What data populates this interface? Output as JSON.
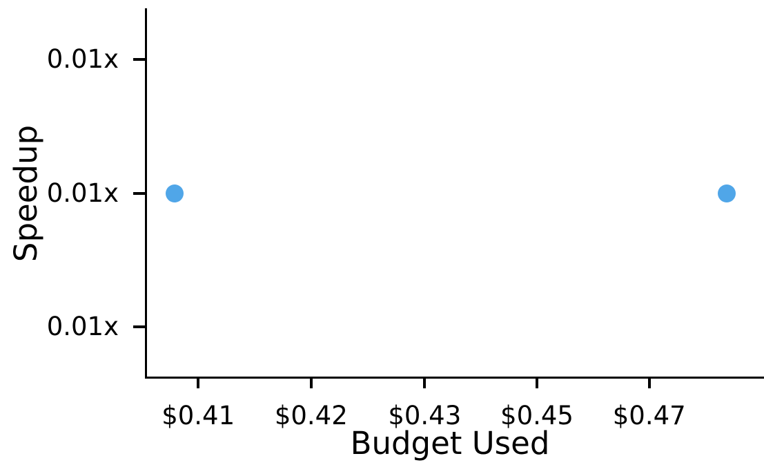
{
  "chart_data": {
    "type": "scatter",
    "title": "",
    "xlabel": "Budget Used",
    "ylabel": "Speedup",
    "axis_color": "#000000",
    "marker_color": "#50A6E8",
    "grid": false,
    "legend": false,
    "x_tick_format": "currency_usd",
    "y_tick_format": "multiplier",
    "xlim_approx": [
      0.404,
      0.482
    ],
    "x_ticks": [
      {
        "label": "$0.41",
        "pos": 0.083
      },
      {
        "label": "$0.42",
        "pos": 0.266
      },
      {
        "label": "$0.43",
        "pos": 0.45
      },
      {
        "label": "$0.45",
        "pos": 0.632
      },
      {
        "label": "$0.47",
        "pos": 0.814
      }
    ],
    "y_ticks": [
      {
        "label": "0.01x",
        "pos": 0.139
      },
      {
        "label": "0.01x",
        "pos": 0.503
      },
      {
        "label": "0.01x",
        "pos": 0.865
      }
    ],
    "points": [
      {
        "budget_used": 0.408,
        "speedup": 0.01,
        "speedup_label": "0.01x",
        "px": 0.045,
        "py": 0.503
      },
      {
        "budget_used": 0.477,
        "speedup": 0.01,
        "speedup_label": "0.01x",
        "px": 0.94,
        "py": 0.503
      }
    ]
  }
}
